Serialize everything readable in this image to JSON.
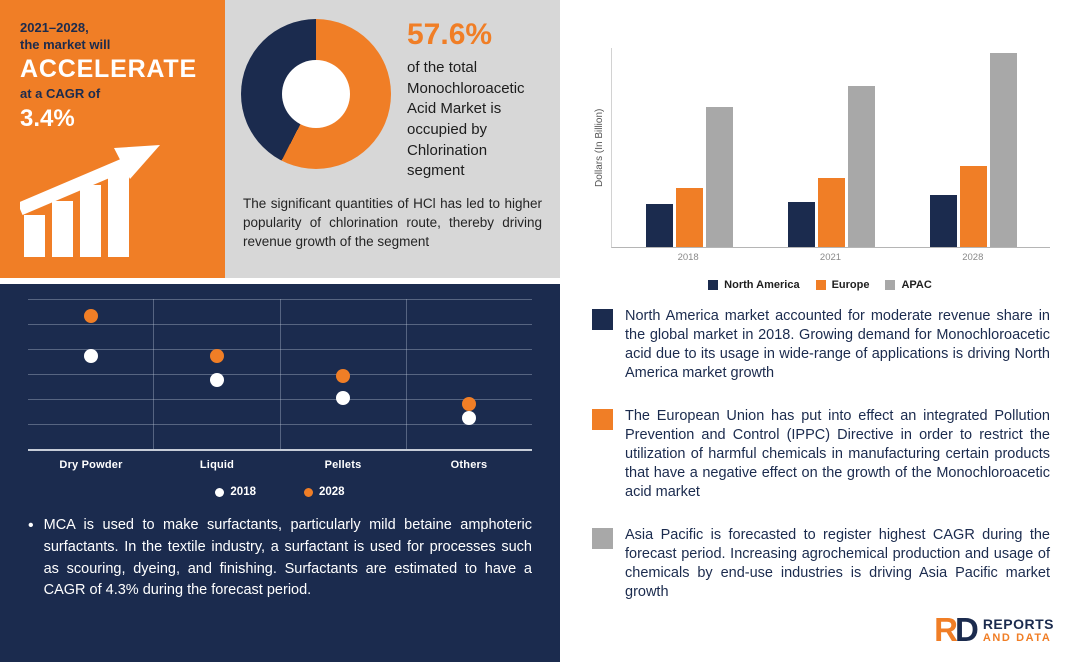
{
  "colors": {
    "orange": "#F07E26",
    "navy": "#1B2B4E",
    "panel_gray": "#D7D7D7",
    "apac_gray": "#A8A8A8"
  },
  "accelerate_panel": {
    "period": "2021–2028,",
    "intro": "the market will",
    "headline": "ACCELERATE",
    "cagr_label": "at a CAGR of",
    "cagr_value": "3.4%"
  },
  "donut_panel": {
    "percent": "57.6%",
    "description": "of the total Monochloroacetic Acid Market is occupied by Chlorination segment",
    "note": "The significant quantities of HCl has led to higher popularity of chlorination route, thereby driving revenue growth of the segment"
  },
  "segment_panel": {
    "bullet_marker": "•",
    "bullet": "MCA is used to make surfactants, particularly mild betaine amphoteric surfactants. In the textile industry, a surfactant is used for processes such as scouring, dyeing, and finishing. Surfactants are estimated to have a CAGR of 4.3% during the forecast period."
  },
  "region_bullets": [
    {
      "region": "North America",
      "color": "#1B2B4E",
      "text": "North America market accounted for moderate revenue share in the global market in 2018. Growing demand for Monochloroacetic acid due to its usage in wide-range of applications is driving North America market growth"
    },
    {
      "region": "Europe",
      "color": "#F07E26",
      "text": "The European Union has put into effect an integrated Pollution Prevention and Control (IPPC) Directive in order to restrict the utilization of harmful chemicals in manufacturing certain products that have a negative effect on the growth of the Monochloroacetic acid market"
    },
    {
      "region": "Asia Pacific",
      "color": "#A8A8A8",
      "text": "Asia Pacific is forecasted to register highest CAGR during the forecast period. Increasing agrochemical production and usage of chemicals by end-use industries is driving Asia Pacific market growth"
    }
  ],
  "logo": {
    "mark_r": "R",
    "mark_d": "D",
    "line1": "REPORTS",
    "line2": "AND DATA"
  },
  "chart_data": [
    {
      "type": "bar",
      "title": "",
      "ylabel": "Dollars (In Billion)",
      "categories": [
        "2018",
        "2021",
        "2028"
      ],
      "series": [
        {
          "name": "North America",
          "color": "#1B2B4E",
          "values": [
            0.9,
            0.95,
            1.1
          ]
        },
        {
          "name": "Europe",
          "color": "#F07E26",
          "values": [
            1.25,
            1.45,
            1.7
          ]
        },
        {
          "name": "APAC",
          "color": "#A8A8A8",
          "values": [
            2.95,
            3.4,
            4.1
          ]
        }
      ],
      "ylim": [
        0,
        4.2
      ],
      "grid": false,
      "legend_position": "bottom"
    },
    {
      "type": "scatter",
      "title": "",
      "categories": [
        "Dry Powder",
        "Liquid",
        "Pellets",
        "Others"
      ],
      "series": [
        {
          "name": "2018",
          "color": "#FFFFFF",
          "values": [
            6.2,
            4.6,
            3.4,
            2.1
          ]
        },
        {
          "name": "2028",
          "color": "#F07E26",
          "values": [
            8.9,
            6.2,
            4.9,
            3.0
          ]
        }
      ],
      "ylim": [
        0,
        10
      ],
      "grid": true,
      "legend_position": "bottom"
    },
    {
      "type": "pie",
      "donut": true,
      "labels": [
        "Chlorination",
        "Other segments"
      ],
      "values": [
        57.6,
        42.4
      ],
      "colors": [
        "#F07E26",
        "#1B2B4E"
      ]
    }
  ]
}
